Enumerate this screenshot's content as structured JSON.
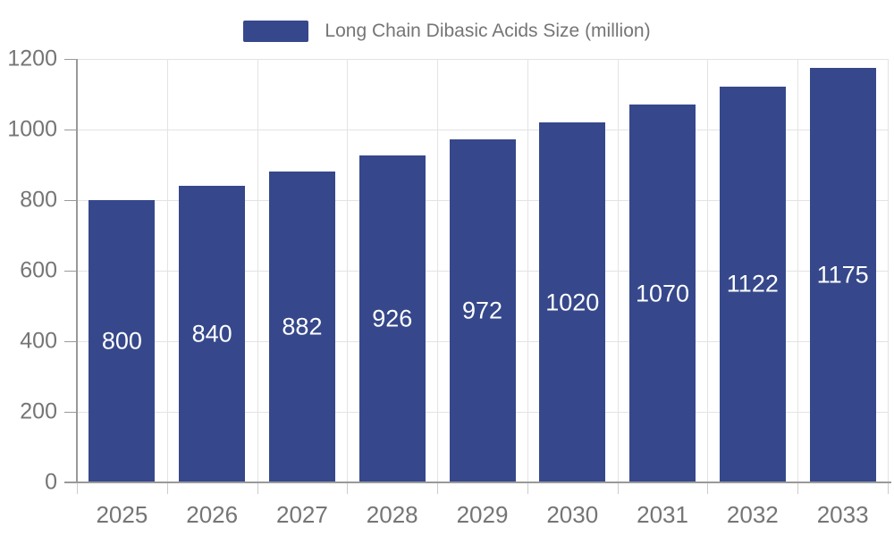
{
  "legend": {
    "label": "Long Chain Dibasic Acids Size (million)"
  },
  "chart_data": {
    "type": "bar",
    "title": "",
    "xlabel": "",
    "ylabel": "",
    "categories": [
      "2025",
      "2026",
      "2027",
      "2028",
      "2029",
      "2030",
      "2031",
      "2032",
      "2033"
    ],
    "series": [
      {
        "name": "Long Chain Dibasic Acids Size (million)",
        "values": [
          800,
          840,
          882,
          926,
          972,
          1020,
          1070,
          1122,
          1175
        ]
      }
    ],
    "value_labels": [
      800,
      840,
      882,
      926,
      972,
      1020,
      1070,
      1122,
      1175
    ],
    "value_label_position": "inside-center",
    "ylim": [
      0,
      1200
    ],
    "yticks": [
      0,
      200,
      400,
      600,
      800,
      1000,
      1200
    ],
    "grid": true,
    "legend_position": "top"
  },
  "colors": {
    "bar": "#36488B",
    "grid_line": "#e3e3e3",
    "axis_line": "#999999",
    "category_tick": "#cccccc",
    "tick_label": "#757575",
    "value_label": "#ffffff",
    "background": "#ffffff"
  }
}
